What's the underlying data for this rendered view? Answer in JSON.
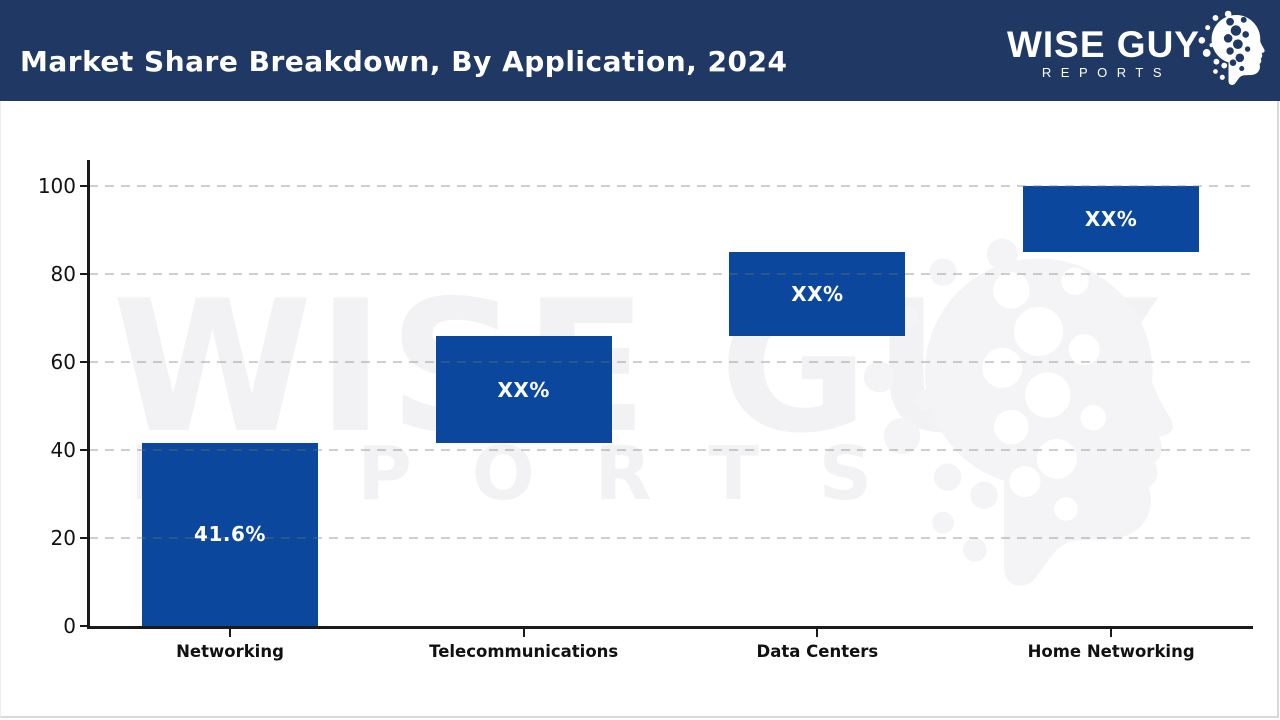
{
  "header": {
    "title": "Market Share Breakdown, By Application, 2024"
  },
  "logo": {
    "line1": "WISE GUY",
    "line2": "REPORTS",
    "head_icon": "dotted-head-profile"
  },
  "watermark": {
    "line1": "WISE GUY",
    "line2": "REPORTS",
    "head_icon": "dotted-head-profile"
  },
  "colors": {
    "header_background": "#1f3864",
    "bar_fill": "#0b479d",
    "bar_label_text": "#ffffff",
    "axis_text": "#111111",
    "gridline": "#c9c9c9",
    "watermark": "#f2f2f4"
  },
  "chart_data": {
    "type": "bar",
    "subtype": "floating-waterfall",
    "title": "Market Share Breakdown, By Application, 2024",
    "categories": [
      "Networking",
      "Telecommunications",
      "Data Centers",
      "Home Networking"
    ],
    "series": [
      {
        "name": "Market Share",
        "segments": [
          {
            "category": "Networking",
            "start": 0,
            "end": 41.6,
            "label": "41.6%"
          },
          {
            "category": "Telecommunications",
            "start": 41.6,
            "end": 65.8,
            "label": "XX%"
          },
          {
            "category": "Data Centers",
            "start": 65.8,
            "end": 85.0,
            "label": "XX%"
          },
          {
            "category": "Home Networking",
            "start": 85.0,
            "end": 100,
            "label": "XX%"
          }
        ]
      }
    ],
    "xlabel": "",
    "ylabel": "",
    "yticks": [
      0,
      20,
      40,
      60,
      80,
      100
    ],
    "ylim": [
      0,
      106
    ],
    "grid": "horizontal-dashed",
    "legend": "none",
    "bar_value_placeholder_note": "XX%"
  }
}
